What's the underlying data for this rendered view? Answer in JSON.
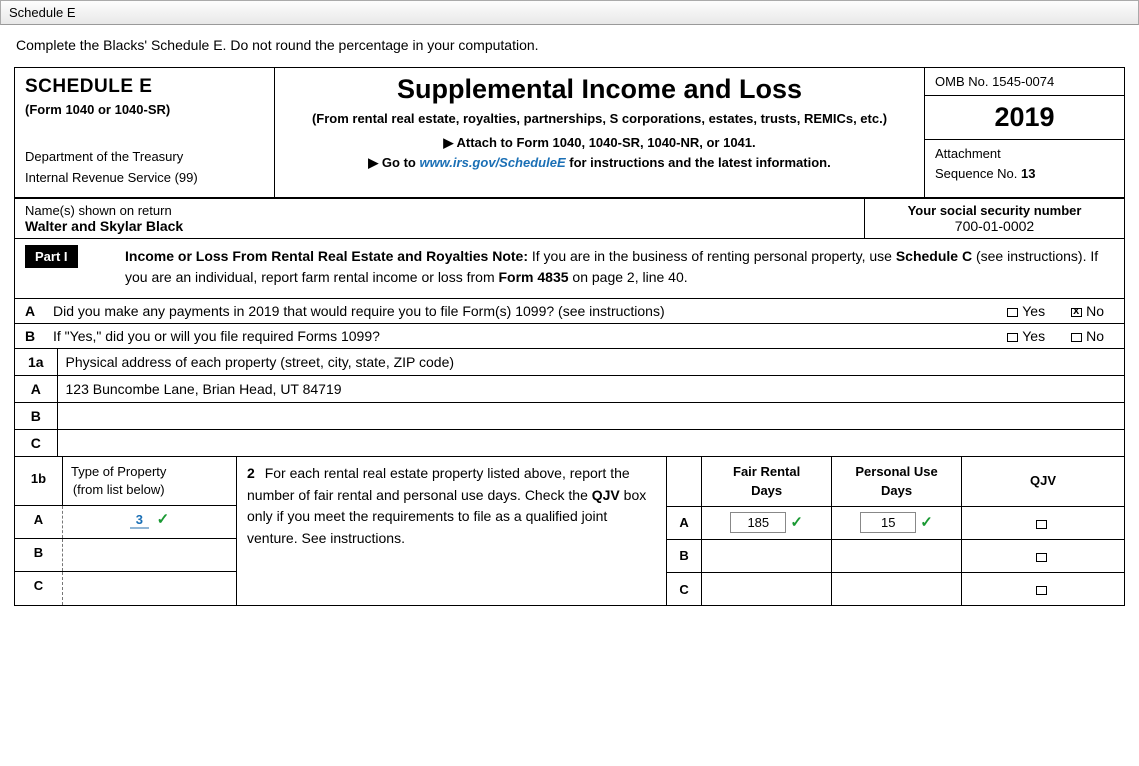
{
  "window": {
    "title": "Schedule E"
  },
  "instruction": "Complete the Blacks' Schedule E. Do not round the percentage in your computation.",
  "header": {
    "schedule_title": "SCHEDULE E",
    "form_ref": "(Form 1040 or 1040-SR)",
    "dept1": "Department of the Treasury",
    "dept2": "Internal Revenue Service (99)",
    "main_title": "Supplemental Income and Loss",
    "subtitle": "(From rental real estate, royalties, partnerships, S corporations, estates, trusts, REMICs, etc.)",
    "attach": "▶ Attach to Form 1040, 1040-SR, 1040-NR, or 1041.",
    "goto_prefix": "▶ Go to ",
    "goto_link": "www.irs.gov/ScheduleE",
    "goto_suffix": " for instructions and the latest information.",
    "omb": "OMB No. 1545-0074",
    "year": "2019",
    "attachment": "Attachment",
    "seq": "Sequence No. 13"
  },
  "taxpayer": {
    "name_label": "Name(s) shown on return",
    "name_value": "Walter and Skylar Black",
    "ssn_label": "Your social security number",
    "ssn_value": "700-01-0002"
  },
  "part1": {
    "badge": "Part I",
    "title": "Income or Loss From Rental Real Estate and Royalties Note:",
    "text": " If you are in the business of renting personal property, use Schedule C (see instructions). If you are an individual, report farm rental income or loss from Form 4835 on page 2, line 40.",
    "bold1": "Schedule C",
    "bold2": "Form 4835"
  },
  "questions": {
    "A": {
      "label": "A",
      "text": "Did you make any payments in 2019 that would require you to file Form(s) 1099? (see instructions)",
      "yes": "Yes",
      "no": "No",
      "yes_checked": false,
      "no_checked": true
    },
    "B": {
      "label": "B",
      "text": "If \"Yes,\" did you or will you file required Forms 1099?",
      "yes": "Yes",
      "no": "No",
      "yes_checked": false,
      "no_checked": false
    }
  },
  "address": {
    "label_1a": "1a",
    "header": "Physical address of each property (street, city, state, ZIP code)",
    "rows": {
      "A": {
        "label": "A",
        "value": "123 Buncombe Lane, Brian Head, UT 84719"
      },
      "B": {
        "label": "B",
        "value": ""
      },
      "C": {
        "label": "C",
        "value": ""
      }
    }
  },
  "type_section": {
    "label_1b": "1b",
    "header1": "Type of Property",
    "header2": "(from list below)",
    "rows": {
      "A": {
        "label": "A",
        "value": "3"
      },
      "B": {
        "label": "B",
        "value": ""
      },
      "C": {
        "label": "C",
        "value": ""
      }
    }
  },
  "col2": {
    "num": "2",
    "text": "For each rental real estate property listed above, report the number of fair rental and personal use days. Check the QJV box only if you meet the requirements to file as a qualified joint venture. See instructions.",
    "bold": "QJV"
  },
  "days": {
    "col_fr": "Fair Rental Days",
    "col_pu": "Personal Use Days",
    "col_qjv": "QJV",
    "rows": {
      "A": {
        "label": "A",
        "fr": "185",
        "pu": "15"
      },
      "B": {
        "label": "B",
        "fr": "",
        "pu": ""
      },
      "C": {
        "label": "C",
        "fr": "",
        "pu": ""
      }
    }
  }
}
